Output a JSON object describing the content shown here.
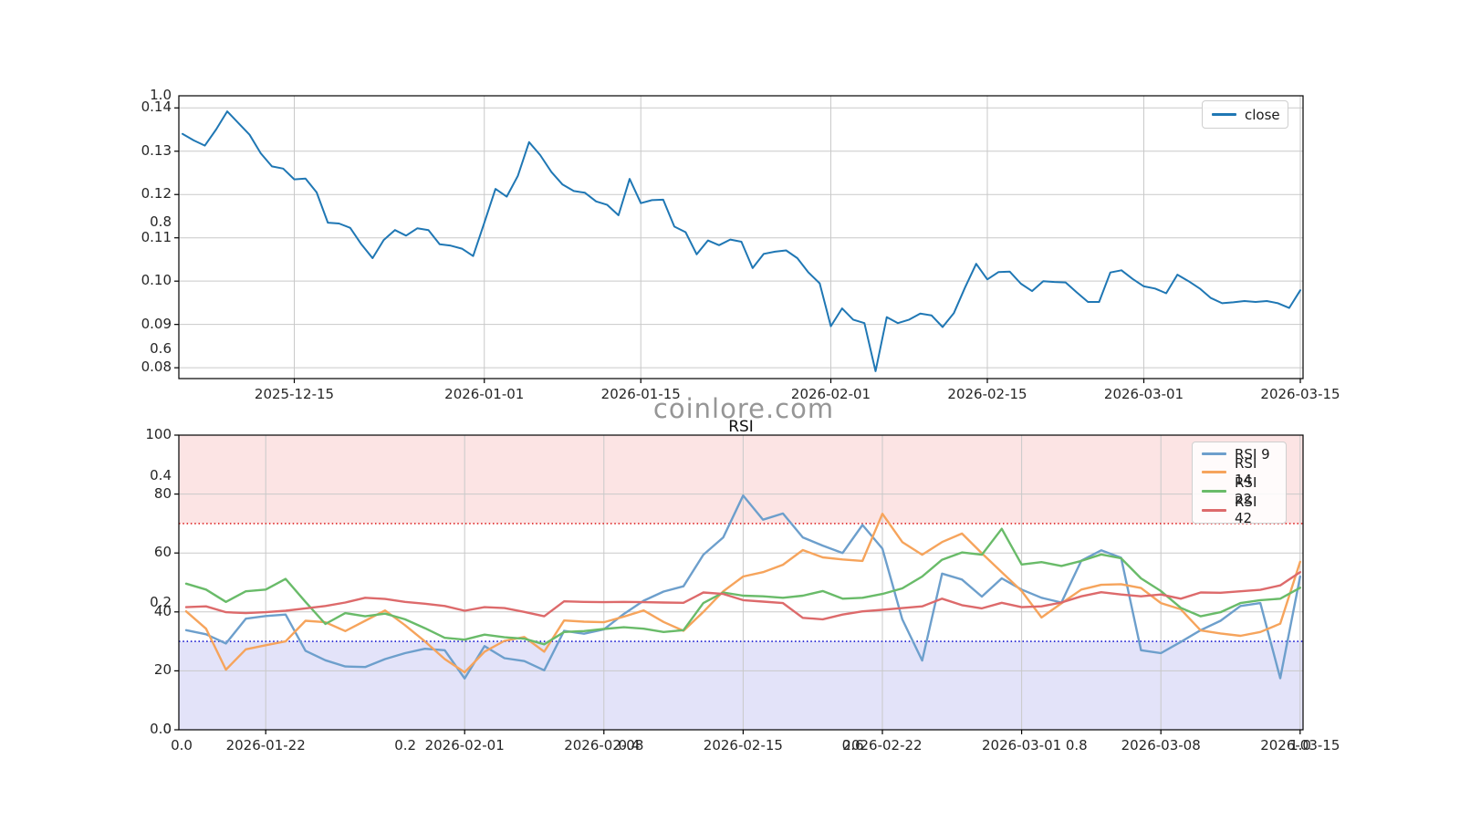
{
  "watermark": "coinlore.com",
  "colors": {
    "grid": "#c9c9c9",
    "spine": "#000000",
    "label": "#262626",
    "watermark": "#969696"
  },
  "stray_axis": {
    "y_labels": [
      "1.0",
      "0.8",
      "0.6",
      "0.4",
      "0.2",
      "0.0"
    ],
    "x_labels": [
      "0.0",
      "0.2",
      "0.4",
      "0.6",
      "0.8",
      "1.0"
    ]
  },
  "chart_data": [
    {
      "id": "price",
      "type": "line",
      "title": "",
      "x_start_date": "2025-12-05",
      "x_ticks": [
        {
          "label": "2025-12-15",
          "idx": 10
        },
        {
          "label": "2026-01-01",
          "idx": 27
        },
        {
          "label": "2026-01-15",
          "idx": 41
        },
        {
          "label": "2026-02-01",
          "idx": 58
        },
        {
          "label": "2026-02-15",
          "idx": 72
        },
        {
          "label": "2026-03-01",
          "idx": 86
        },
        {
          "label": "2026-03-15",
          "idx": 100
        }
      ],
      "y_ticks": [
        {
          "label": "0.08",
          "value": 0.08
        },
        {
          "label": "0.09",
          "value": 0.09
        },
        {
          "label": "0.10",
          "value": 0.1
        },
        {
          "label": "0.11",
          "value": 0.11
        },
        {
          "label": "0.12",
          "value": 0.12
        },
        {
          "label": "0.13",
          "value": 0.13
        },
        {
          "label": "0.14",
          "value": 0.14
        }
      ],
      "ylim": [
        0.0775,
        0.1428
      ],
      "legend_position": "top-right",
      "series": [
        {
          "name": "close",
          "color": "#1f77b4",
          "width": 2,
          "values": [
            0.134,
            0.1325,
            0.1313,
            0.135,
            0.1392,
            0.1365,
            0.1338,
            0.1295,
            0.1265,
            0.126,
            0.1235,
            0.1237,
            0.1205,
            0.1135,
            0.1133,
            0.1123,
            0.1085,
            0.1053,
            0.1095,
            0.1118,
            0.1105,
            0.1122,
            0.1118,
            0.1085,
            0.1082,
            0.1075,
            0.1058,
            0.1135,
            0.1213,
            0.1195,
            0.1243,
            0.1321,
            0.1291,
            0.1252,
            0.1223,
            0.1208,
            0.1204,
            0.1184,
            0.1176,
            0.1152,
            0.1236,
            0.118,
            0.1187,
            0.1188,
            0.1126,
            0.1113,
            0.1062,
            0.1094,
            0.1083,
            0.1096,
            0.1091,
            0.103,
            0.1063,
            0.1068,
            0.1071,
            0.1053,
            0.102,
            0.0995,
            0.0896,
            0.0937,
            0.0911,
            0.0903,
            0.0792,
            0.0917,
            0.0903,
            0.0911,
            0.0925,
            0.0921,
            0.0894,
            0.0926,
            0.0985,
            0.104,
            0.1004,
            0.1021,
            0.1022,
            0.0994,
            0.0977,
            0.1,
            0.0998,
            0.0997,
            0.0974,
            0.0952,
            0.0952,
            0.102,
            0.1025,
            0.1005,
            0.0988,
            0.0983,
            0.0972,
            0.1015,
            0.1,
            0.0983,
            0.0961,
            0.0949,
            0.0951,
            0.0954,
            0.0952,
            0.0954,
            0.0949,
            0.0938,
            0.0979
          ]
        }
      ]
    },
    {
      "id": "rsi",
      "type": "line",
      "title": "RSI",
      "x_start_date": "2026-01-18",
      "x_ticks": [
        {
          "label": "2026-01-22",
          "idx": 4
        },
        {
          "label": "2026-02-01",
          "idx": 14
        },
        {
          "label": "2026-02-08",
          "idx": 21
        },
        {
          "label": "2026-02-15",
          "idx": 28
        },
        {
          "label": "2026-02-22",
          "idx": 35
        },
        {
          "label": "2026-03-01",
          "idx": 42
        },
        {
          "label": "2026-03-08",
          "idx": 49
        },
        {
          "label": "2026-03-15",
          "idx": 56
        }
      ],
      "y_ticks": [
        {
          "label": "0",
          "value": 0
        },
        {
          "label": "20",
          "value": 20
        },
        {
          "label": "40",
          "value": 40
        },
        {
          "label": "60",
          "value": 60
        },
        {
          "label": "80",
          "value": 80
        },
        {
          "label": "100",
          "value": 100
        }
      ],
      "ylim": [
        0,
        100
      ],
      "bands": [
        {
          "from": 70,
          "to": 100,
          "color": "rgba(235,45,45,0.13)",
          "name": "overbought-band"
        },
        {
          "from": 0,
          "to": 30,
          "color": "rgba(55,55,215,0.14)",
          "name": "oversold-band"
        }
      ],
      "hlines": [
        {
          "value": 70,
          "color": "#dd2222",
          "name": "overbought-threshold"
        },
        {
          "value": 30,
          "color": "#1515d0",
          "name": "oversold-threshold"
        }
      ],
      "legend_position": "top-right",
      "series": [
        {
          "name": "RSI 9",
          "color": "#6d9fcc",
          "width": 2.4,
          "values": [
            33.8,
            32.4,
            29.3,
            37.7,
            38.6,
            39.1,
            26.8,
            23.6,
            21.5,
            21.3,
            24.0,
            26.0,
            27.5,
            27.0,
            17.4,
            28.4,
            24.3,
            23.3,
            20.2,
            33.6,
            32.6,
            34.1,
            39.3,
            43.8,
            46.9,
            48.7,
            59.4,
            65.3,
            79.5,
            71.3,
            73.4,
            65.3,
            62.5,
            60.0,
            69.5,
            61.5,
            37.5,
            23.5,
            53.0,
            51.0,
            45.2,
            51.4,
            47.6,
            44.8,
            43.2,
            57.4,
            60.9,
            58.4,
            27.0,
            26.0,
            29.8,
            33.8,
            37.0,
            42.0,
            43.0,
            17.5,
            52.0
          ]
        },
        {
          "name": "RSI 14",
          "color": "#f6a45c",
          "width": 2.4,
          "values": [
            40.2,
            34.3,
            20.4,
            27.3,
            28.7,
            30.0,
            37.0,
            36.5,
            33.5,
            37.0,
            40.5,
            35.5,
            30.0,
            24.0,
            19.5,
            26.5,
            30.2,
            31.5,
            26.5,
            37.1,
            36.7,
            36.5,
            38.4,
            40.5,
            36.6,
            33.6,
            40.0,
            47.0,
            52.0,
            53.5,
            56.0,
            61.0,
            58.5,
            57.8,
            57.3,
            73.3,
            63.7,
            59.4,
            63.7,
            66.6,
            59.9,
            53.5,
            47.1,
            38.1,
            42.9,
            47.6,
            49.2,
            49.4,
            48.1,
            43.0,
            40.9,
            33.7,
            32.7,
            31.9,
            33.2,
            36.0,
            57.0
          ]
        },
        {
          "name": "RSI 22",
          "color": "#69bb69",
          "width": 2.4,
          "values": [
            49.6,
            47.6,
            43.4,
            47.0,
            47.6,
            51.2,
            43.4,
            35.9,
            39.6,
            38.5,
            39.4,
            37.5,
            34.5,
            31.2,
            30.6,
            32.3,
            31.4,
            30.9,
            29.0,
            33.2,
            33.5,
            34.2,
            34.8,
            34.3,
            33.2,
            33.8,
            43.0,
            46.6,
            45.5,
            45.3,
            44.8,
            45.5,
            47.1,
            44.5,
            44.8,
            46.1,
            48.0,
            52.0,
            57.7,
            60.2,
            59.4,
            68.2,
            56.1,
            56.9,
            55.6,
            57.3,
            59.5,
            58.2,
            51.4,
            47.1,
            41.4,
            38.5,
            39.9,
            43.0,
            44.0,
            44.5,
            48.2
          ]
        },
        {
          "name": "RSI 42",
          "color": "#dd6a6b",
          "width": 2.4,
          "values": [
            41.6,
            41.9,
            39.9,
            39.6,
            39.9,
            40.4,
            41.2,
            42.0,
            43.2,
            44.8,
            44.4,
            43.4,
            42.8,
            42.0,
            40.4,
            41.6,
            41.3,
            40.0,
            38.5,
            43.6,
            43.4,
            43.3,
            43.4,
            43.3,
            43.2,
            43.1,
            46.6,
            46.1,
            44.0,
            43.5,
            43.0,
            38.0,
            37.5,
            39.1,
            40.2,
            40.7,
            41.3,
            41.9,
            44.5,
            42.3,
            41.2,
            43.1,
            41.6,
            41.9,
            43.2,
            45.3,
            46.7,
            45.9,
            45.3,
            45.9,
            44.5,
            46.6,
            46.5,
            47.0,
            47.5,
            49.0,
            53.5
          ]
        }
      ]
    }
  ]
}
